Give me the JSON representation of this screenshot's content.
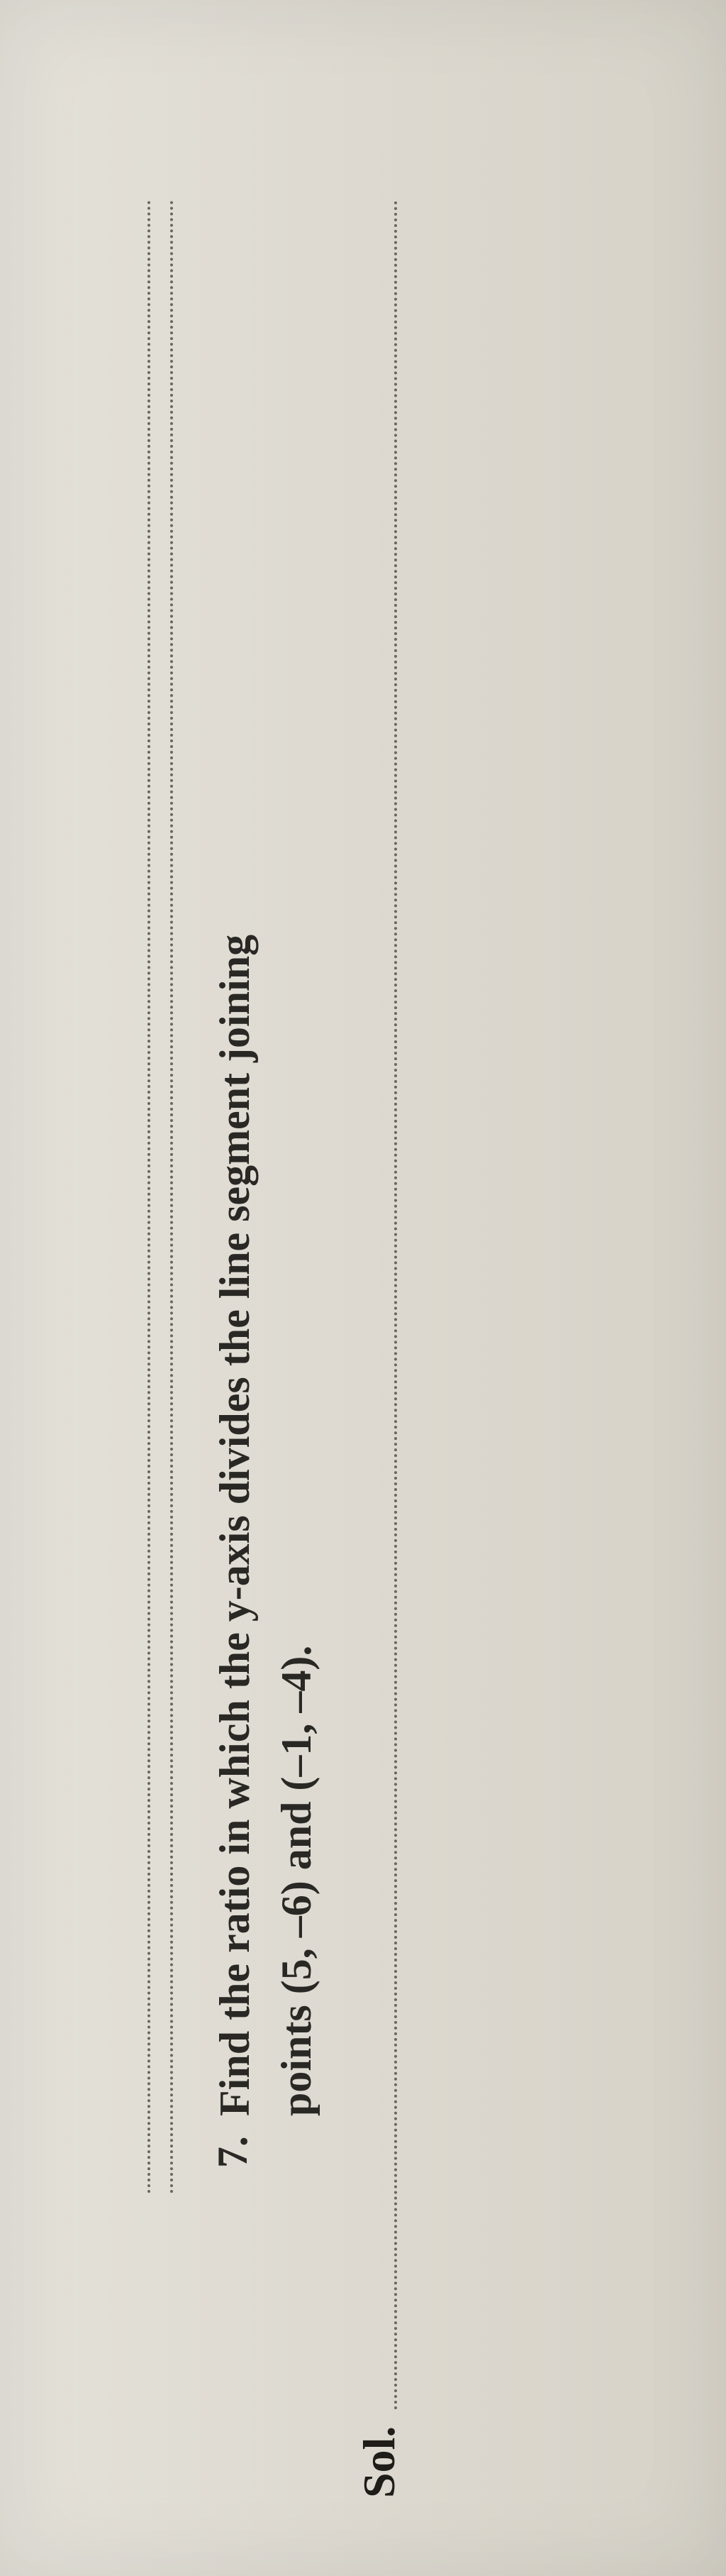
{
  "question": {
    "number": "7.",
    "line1": "Find the ratio in which the y-axis divides the line segment joining",
    "line2": "points (5, –6) and (–1, –4)."
  },
  "solution_label": "Sol.",
  "colors": {
    "page_bg_top": "#e4e1d9",
    "page_bg_mid": "#ddd9d0",
    "page_bg_bot": "#d6d2c8",
    "dots": "#6a665e",
    "ink": "#2a2824"
  },
  "typography": {
    "body_fontsize_pt": 45,
    "sol_fontsize_pt": 48,
    "weight": "bold",
    "family": "Georgia, Times New Roman, serif"
  }
}
